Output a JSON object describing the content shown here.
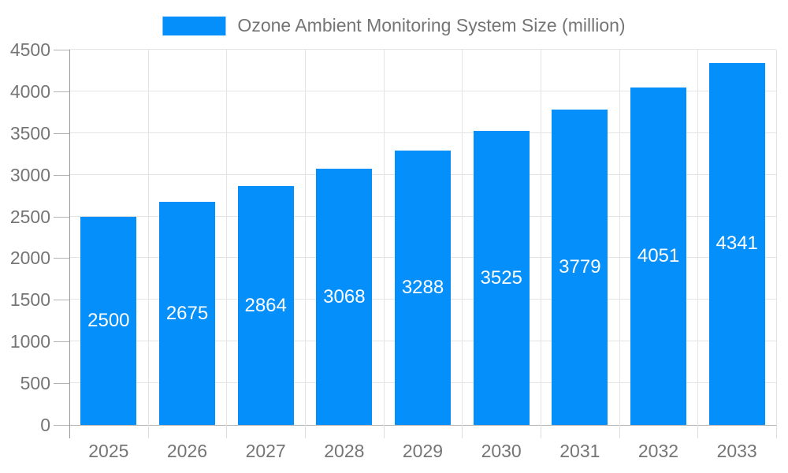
{
  "chart_data": {
    "type": "bar",
    "title": "Ozone Ambient Monitoring System Size (million)",
    "legend_position": "top",
    "categories": [
      "2025",
      "2026",
      "2027",
      "2028",
      "2029",
      "2030",
      "2031",
      "2032",
      "2033"
    ],
    "series": [
      {
        "name": "Ozone Ambient Monitoring System Size (million)",
        "values": [
          2500,
          2675,
          2864,
          3068,
          3288,
          3525,
          3779,
          4051,
          4341
        ]
      }
    ],
    "xlabel": "",
    "ylabel": "",
    "ylim": [
      0,
      4500
    ],
    "ytick_step": 500,
    "ytick_labels": [
      "0",
      "500",
      "1000",
      "1500",
      "2000",
      "2500",
      "3000",
      "3500",
      "4000",
      "4500"
    ],
    "grid": true,
    "value_labels": "inside-center",
    "colors": {
      "bar": "#058ffa",
      "value_label": "#ffffff",
      "axis_label": "#757575",
      "gridline": "#e4e4e4",
      "baseline": "#b2b2b2",
      "axis_line": "#999999",
      "x_tick": "#dddddd",
      "background": "#ffffff"
    }
  }
}
